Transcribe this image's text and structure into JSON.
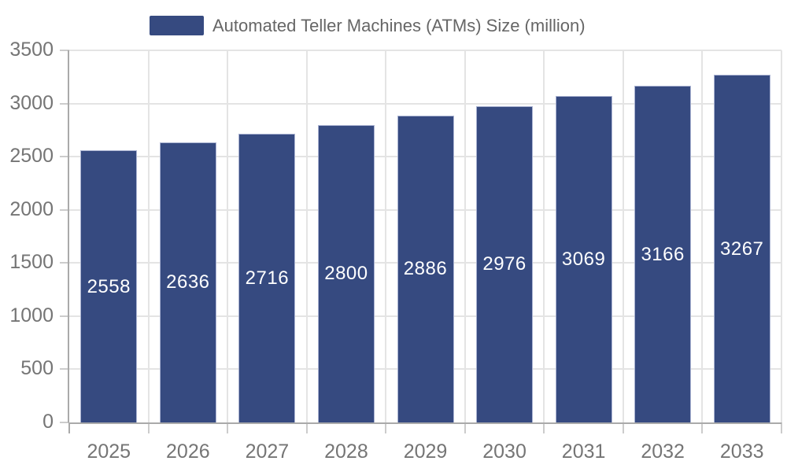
{
  "legend": {
    "label": "Automated Teller Machines (ATMs) Size (million)"
  },
  "chart_data": {
    "type": "bar",
    "title": "Automated Teller Machines (ATMs) Size (million)",
    "legend_entries": [
      "Automated Teller Machines (ATMs) Size (million)"
    ],
    "legend_position": "top",
    "categories": [
      "2025",
      "2026",
      "2027",
      "2028",
      "2029",
      "2030",
      "2031",
      "2032",
      "2033"
    ],
    "series": [
      {
        "name": "Automated Teller Machines (ATMs) Size (million)",
        "values": [
          2558,
          2636,
          2716,
          2800,
          2886,
          2976,
          3069,
          3166,
          3267
        ]
      }
    ],
    "xlabel": "",
    "ylabel": "",
    "ylim": [
      0,
      3500
    ],
    "ytick_step": 500,
    "ytick_labels": [
      "0",
      "500",
      "1000",
      "1500",
      "2000",
      "2500",
      "3000",
      "3500"
    ],
    "grid": "both",
    "bar_value_labels": "inside-center",
    "colors": {
      "bar_fill": "#364a80",
      "bar_border": "#aab3d2",
      "bar_label_text": "#ffffff",
      "axis_label_text": "#757575",
      "legend_text": "#666666",
      "grid_line": "#e4e4e4",
      "axis_line": "#aaaaaa",
      "tick_line": "#cccccc",
      "background": "#ffffff"
    }
  }
}
